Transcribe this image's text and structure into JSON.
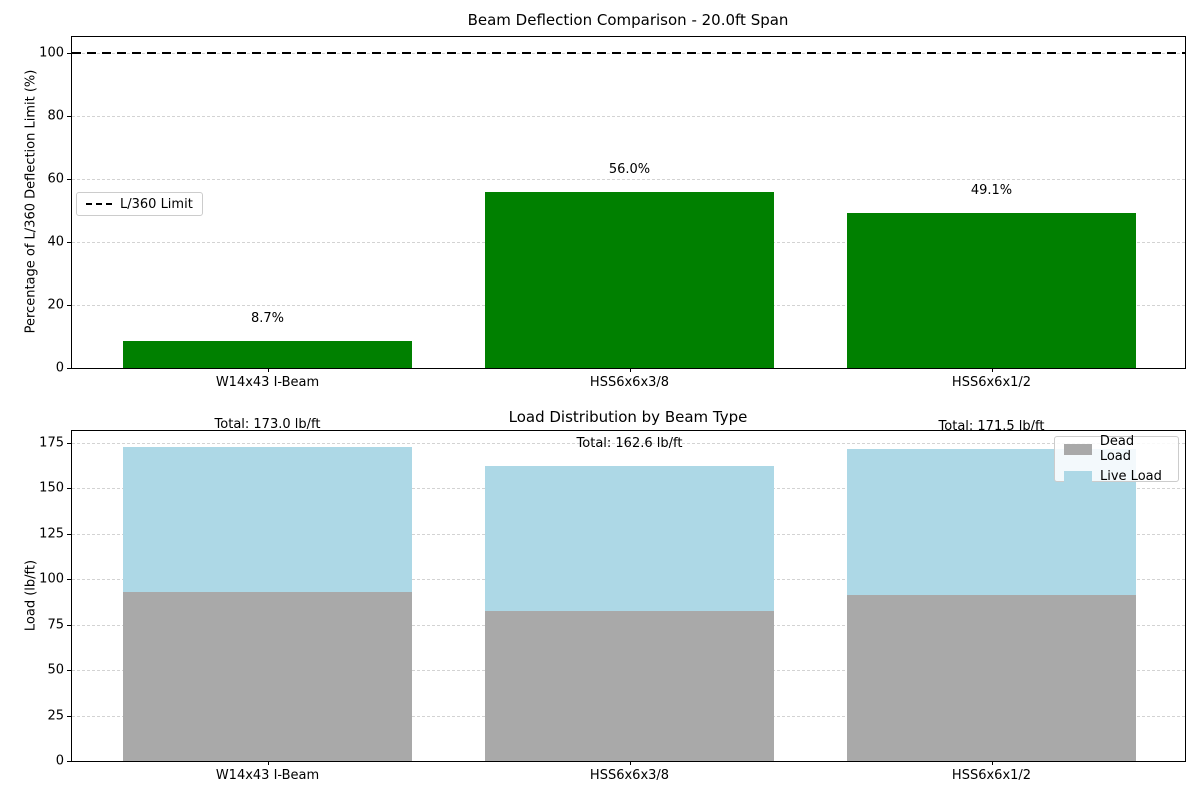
{
  "chart_data": [
    {
      "type": "bar",
      "title": "Beam Deflection Comparison - 20.0ft Span",
      "ylabel": "Percentage of L/360 Deflection Limit (%)",
      "categories": [
        "W14x43 I-Beam",
        "HSS6x6x3/8",
        "HSS6x6x1/2"
      ],
      "values": [
        8.7,
        56.0,
        49.1
      ],
      "bar_labels": [
        "8.7%",
        "56.0%",
        "49.1%"
      ],
      "bar_color": "#008000",
      "ylim": [
        0,
        105.15
      ],
      "yticks": [
        0,
        20,
        40,
        60,
        80,
        100
      ],
      "grid": true,
      "reference_line": {
        "value": 100,
        "style": "dashed",
        "color": "#000000",
        "label": "L/360 Limit"
      },
      "legend": {
        "position": "center-left",
        "entries": [
          {
            "label": "L/360 Limit",
            "swatch": "dashed-line",
            "color": "#000000"
          }
        ]
      }
    },
    {
      "type": "stacked-bar",
      "title": "Load Distribution by Beam Type",
      "ylabel": "Load (lb/ft)",
      "categories": [
        "W14x43 I-Beam",
        "HSS6x6x3/8",
        "HSS6x6x1/2"
      ],
      "series": [
        {
          "name": "Dead Load",
          "color": "#a9a9a9",
          "values": [
            93.0,
            82.6,
            91.5
          ]
        },
        {
          "name": "Live Load",
          "color": "#add8e6",
          "values": [
            80.0,
            80.0,
            80.0
          ]
        }
      ],
      "totals": [
        173.0,
        162.6,
        171.5
      ],
      "total_labels": [
        "Total: 173.0 lb/ft",
        "Total: 162.6 lb/ft",
        "Total: 171.5 lb/ft"
      ],
      "ylim": [
        0,
        181.65
      ],
      "yticks": [
        0,
        25,
        50,
        75,
        100,
        125,
        150,
        175
      ],
      "grid": true,
      "legend": {
        "position": "top-right",
        "entries": [
          {
            "label": "Dead Load",
            "swatch": "patch",
            "color": "#a9a9a9"
          },
          {
            "label": "Live Load",
            "swatch": "patch",
            "color": "#add8e6"
          }
        ]
      }
    }
  ],
  "colors": {
    "background": "#ffffff",
    "grid": "#d3d3d3",
    "axes_border": "#000000"
  }
}
